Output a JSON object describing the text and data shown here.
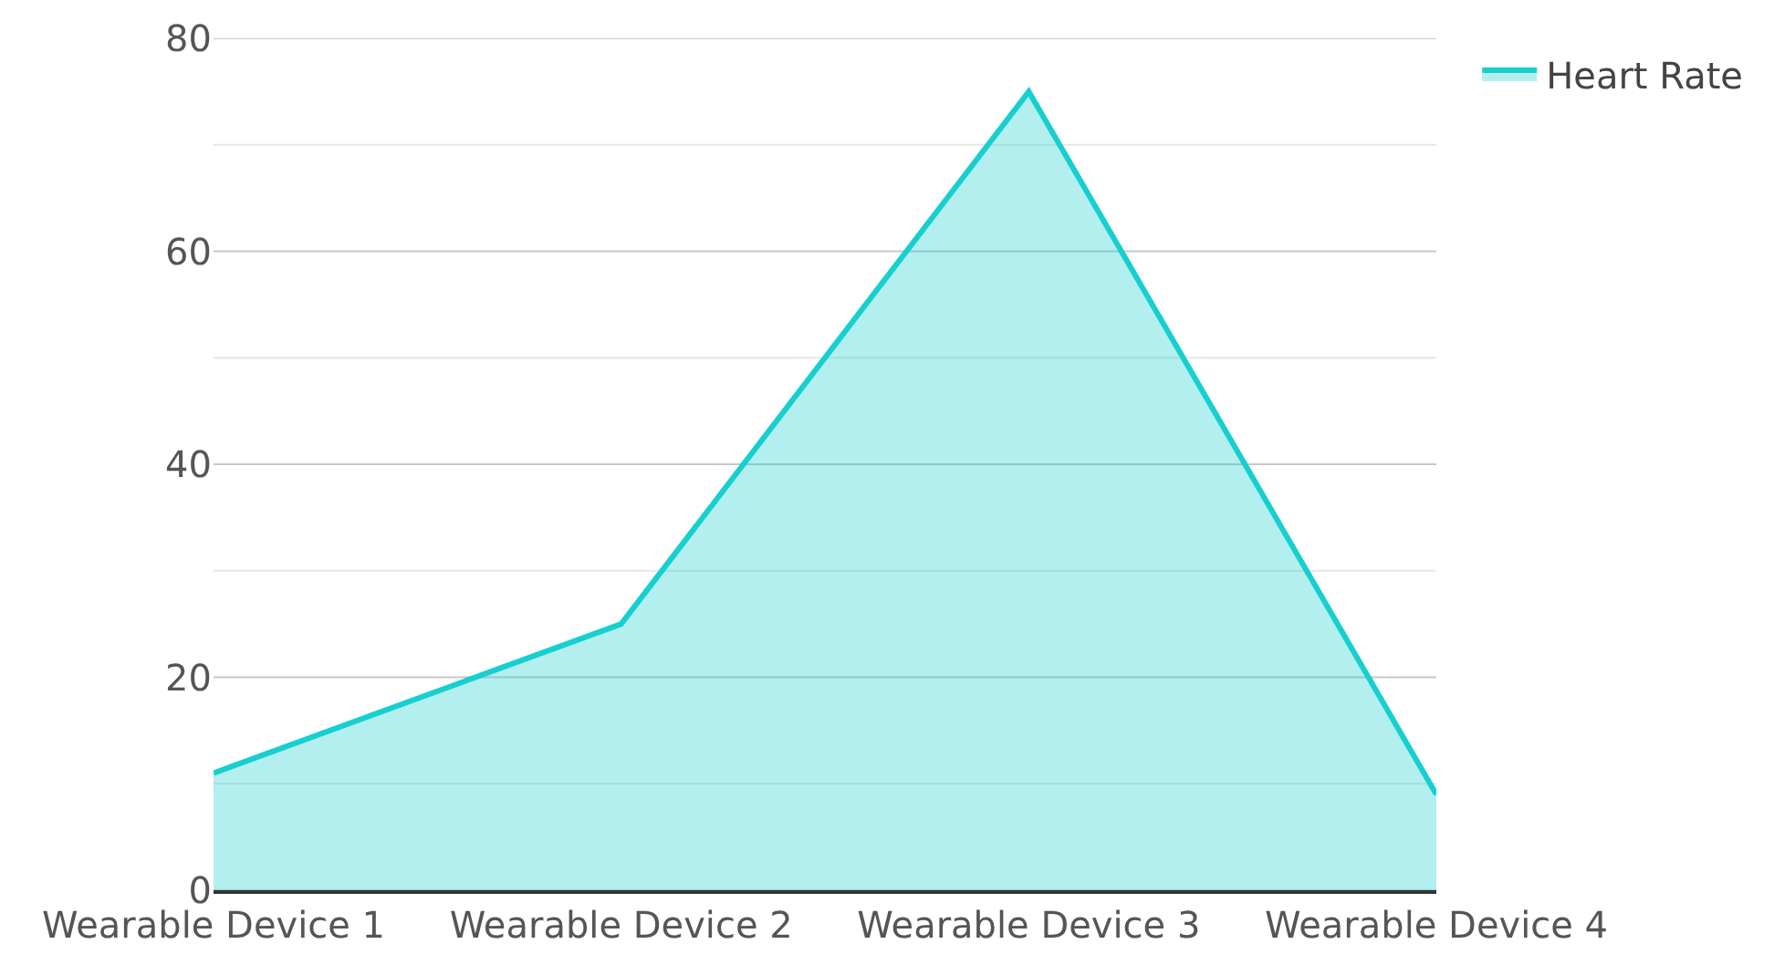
{
  "chart_data": {
    "type": "area",
    "categories": [
      "Wearable Device 1",
      "Wearable Device 2",
      "Wearable Device 3",
      "Wearable Device 4"
    ],
    "series": [
      {
        "name": "Heart Rate",
        "color": "#17cfcf",
        "values": [
          11,
          25,
          75,
          9
        ]
      }
    ],
    "ylim": [
      0,
      80
    ],
    "yticks": [
      0,
      {
        "value": 10,
        "label": null
      },
      20,
      {
        "value": 30,
        "label": null
      },
      40,
      {
        "value": 50,
        "label": null
      },
      60,
      {
        "value": 70,
        "label": null
      },
      80
    ],
    "grid": "y",
    "legend": "top right",
    "marker": "none",
    "line_style": "solid"
  }
}
